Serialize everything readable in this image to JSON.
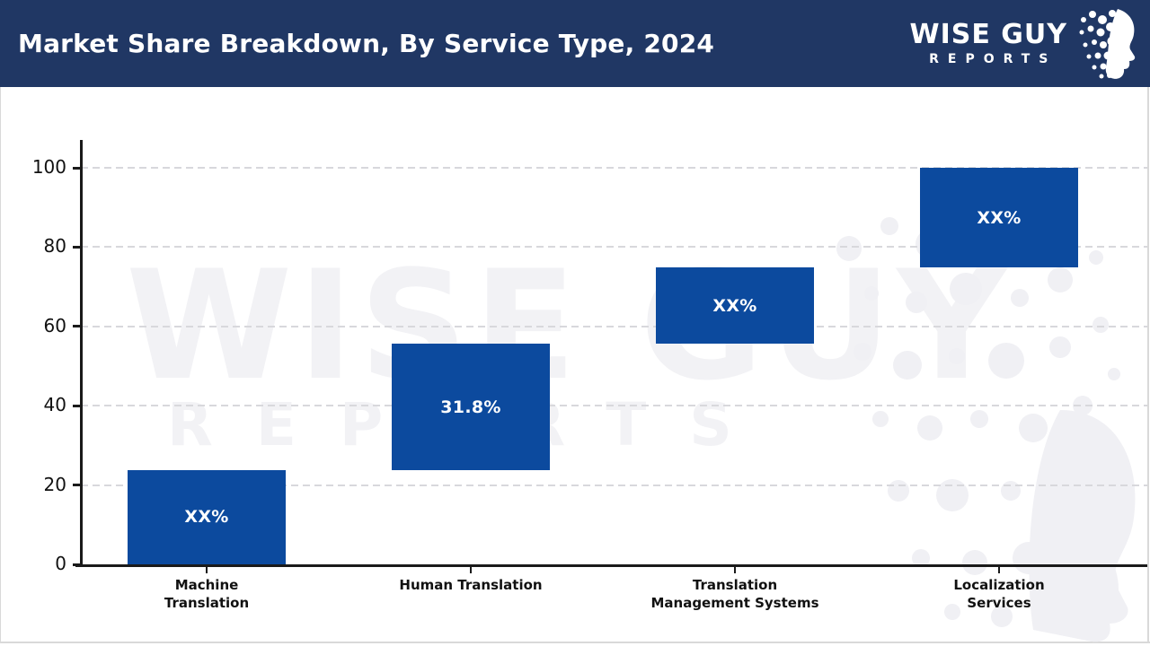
{
  "header": {
    "title": "Market Share Breakdown, By Service Type, 2024",
    "logo": {
      "name": "WISE GUY",
      "subtitle": "REPORTS"
    }
  },
  "watermark": {
    "name": "WISE GUY",
    "subtitle": "REPORTS"
  },
  "chart_data": {
    "type": "bar",
    "subtype": "waterfall",
    "title": "Market Share Breakdown, By Service Type, 2024",
    "categories": [
      "Machine Translation",
      "Human Translation",
      "Translation Management Systems",
      "Localization Services"
    ],
    "category_display": [
      "Machine\nTranslation",
      "Human Translation",
      "Translation\nManagement Systems",
      "Localization\nServices"
    ],
    "segments": [
      {
        "category": "Machine Translation",
        "start": 0,
        "end": 23.8,
        "value": 23.8,
        "label": "XX%"
      },
      {
        "category": "Human Translation",
        "start": 23.8,
        "end": 55.6,
        "value": 31.8,
        "label": "31.8%"
      },
      {
        "category": "Translation Management Systems",
        "start": 55.6,
        "end": 74.8,
        "value": 19.2,
        "label": "XX%"
      },
      {
        "category": "Localization Services",
        "start": 74.8,
        "end": 100,
        "value": 25.2,
        "label": "XX%"
      }
    ],
    "xlabel": "",
    "ylabel": "",
    "ylim": [
      0,
      107
    ],
    "yticks": [
      0,
      20,
      40,
      60,
      80,
      100
    ],
    "grid": true,
    "legend": false,
    "bar_color": "#0c4a9e",
    "bar_label_color": "#ffffff"
  },
  "colors": {
    "header_bg": "#203764",
    "bar": "#0c4a9e",
    "gridline": "#d8d8dc",
    "axis": "#1a1a1a",
    "tick_label": "#111111",
    "watermark": "#f2f2f5",
    "frame_border": "#d9d9d9"
  }
}
